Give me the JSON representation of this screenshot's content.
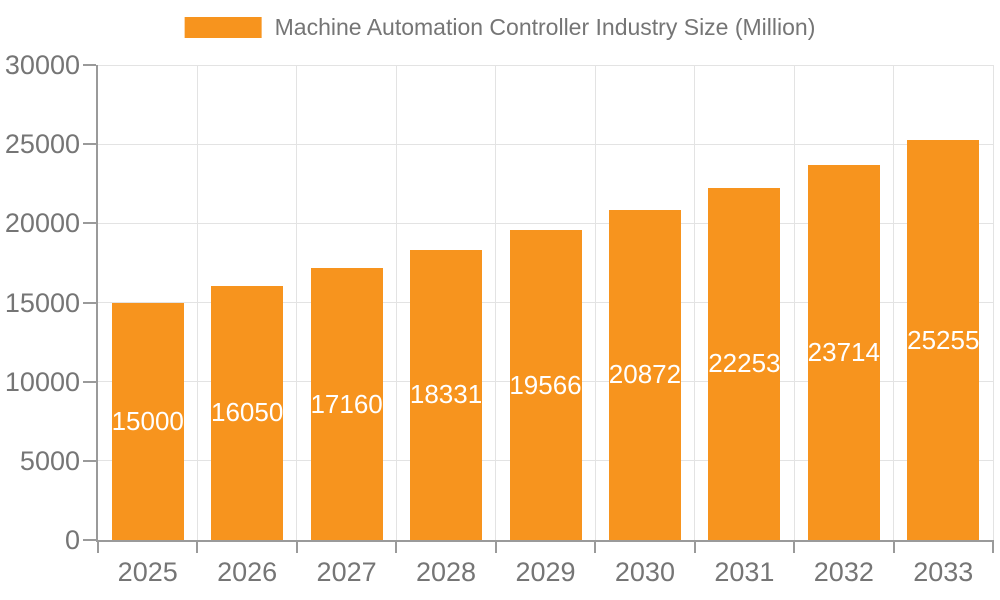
{
  "legend": {
    "label": "Machine Automation Controller Industry Size (Million)"
  },
  "colors": {
    "bar": "#F7941E",
    "axis": "#9A9A9A",
    "grid": "#E3E3E3",
    "text": "#757575",
    "bar_label": "#FFFFFF",
    "background": "#FFFFFF"
  },
  "chart_data": {
    "type": "bar",
    "title": "Machine Automation Controller Industry Size (Million)",
    "categories": [
      "2025",
      "2026",
      "2027",
      "2028",
      "2029",
      "2030",
      "2031",
      "2032",
      "2033"
    ],
    "values": [
      15000,
      16050,
      17160,
      18331,
      19566,
      20872,
      22253,
      23714,
      25255
    ],
    "xlabel": "",
    "ylabel": "",
    "ylim": [
      0,
      30000
    ],
    "yticks": [
      0,
      5000,
      10000,
      15000,
      20000,
      25000,
      30000
    ],
    "grid": "both",
    "legend_position": "top-center",
    "data_labels": "inside-center"
  }
}
